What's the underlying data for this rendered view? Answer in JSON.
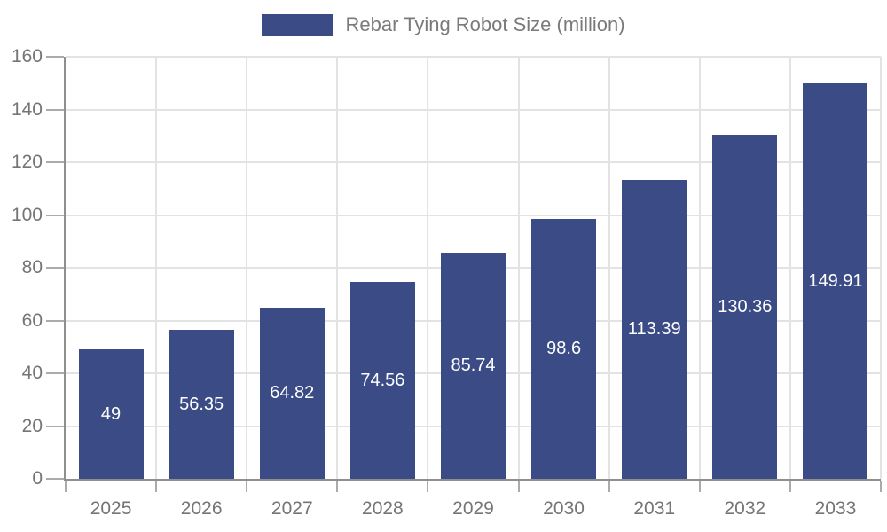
{
  "legend": {
    "label": "Rebar Tying Robot Size (million)",
    "swatch_color": "#3a4b85"
  },
  "chart_data": {
    "type": "bar",
    "title": "Rebar Tying Robot Size (million)",
    "categories": [
      "2025",
      "2026",
      "2027",
      "2028",
      "2029",
      "2030",
      "2031",
      "2032",
      "2033"
    ],
    "values": [
      49,
      56.35,
      64.82,
      74.56,
      85.74,
      98.6,
      113.39,
      130.36,
      149.91
    ],
    "value_labels": [
      "49",
      "56.35",
      "64.82",
      "74.56",
      "85.74",
      "98.6",
      "113.39",
      "130.36",
      "149.91"
    ],
    "xlabel": "",
    "ylabel": "",
    "ylim": [
      0,
      160
    ],
    "yticks": [
      0,
      20,
      40,
      60,
      80,
      100,
      120,
      140,
      160
    ],
    "grid": true,
    "legend_position": "top-center",
    "bar_color": "#3a4b85",
    "value_label_color": "#ffffff",
    "axis_color": "#8f8f8f",
    "grid_color": "#e3e3e3",
    "tick_color": "#ababab",
    "tick_label_color": "#757575",
    "legend_text_color": "#7a7a7a",
    "background_color": "#ffffff"
  }
}
